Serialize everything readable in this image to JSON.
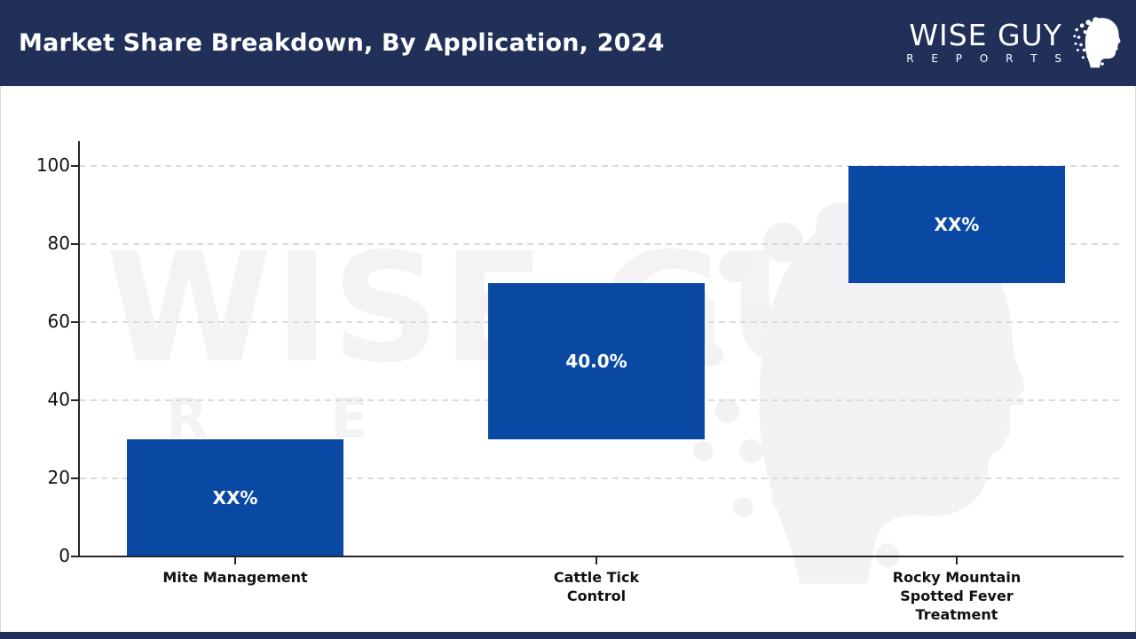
{
  "header": {
    "title": "Market Share Breakdown, By Application, 2024",
    "logo": {
      "line1": "WISE GUY",
      "line2": "R E P O R T S"
    }
  },
  "watermark": {
    "line1": "WISE GUY",
    "line2": "R E P O R T S"
  },
  "colors": {
    "header_bg": "#213059",
    "bar": "#0a49a3",
    "grid": "#dadada",
    "axis": "#262626",
    "watermark": "#f3f3f6",
    "bar_label": "#ffffff"
  },
  "chart_data": {
    "type": "bar",
    "variant": "waterfall",
    "title": "Market Share Breakdown, By Application, 2024",
    "categories": [
      "Mite Management",
      "Cattle Tick\nControl",
      "Rocky Mountain\nSpotted Fever\nTreatment"
    ],
    "bars": [
      {
        "category": "Mite Management",
        "start": 0,
        "end": 30,
        "value_label": "XX%"
      },
      {
        "category": "Cattle Tick Control",
        "start": 30,
        "end": 70,
        "value_label": "40.0%"
      },
      {
        "category": "Rocky Mountain Spotted Fever Treatment",
        "start": 70,
        "end": 100,
        "value_label": "XX%"
      }
    ],
    "ylim": [
      0,
      100
    ],
    "yticks": [
      0,
      20,
      40,
      60,
      80,
      100
    ],
    "xlabel": "",
    "ylabel": "",
    "grid": "horizontal-dashed",
    "legend": "none",
    "bar_color": "#0a49a3",
    "bar_label_color": "#ffffff"
  }
}
